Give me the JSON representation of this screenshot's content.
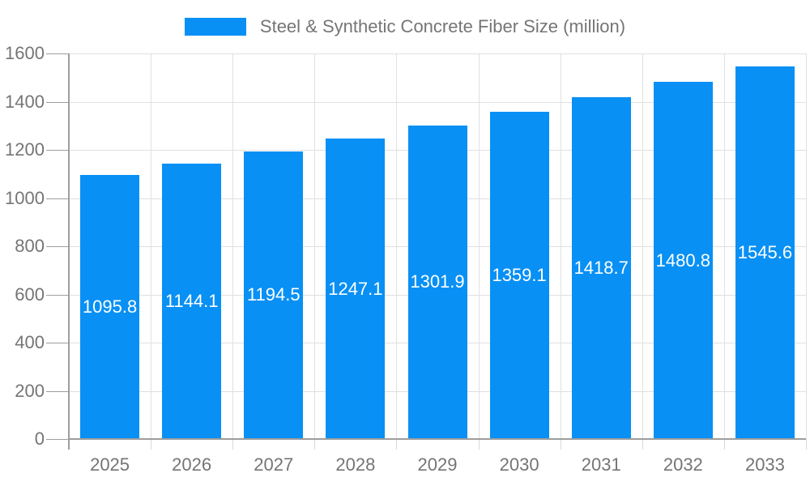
{
  "legend": {
    "label": "Steel & Synthetic Concrete Fiber Size (million)"
  },
  "chart_data": {
    "type": "bar",
    "title": "Steel & Synthetic Concrete Fiber Size (million)",
    "categories": [
      "2025",
      "2026",
      "2027",
      "2028",
      "2029",
      "2030",
      "2031",
      "2032",
      "2033"
    ],
    "series": [
      {
        "name": "Steel & Synthetic Concrete Fiber Size (million)",
        "values": [
          1095.8,
          1144.1,
          1194.5,
          1247.1,
          1301.9,
          1359.1,
          1418.7,
          1480.8,
          1545.6
        ]
      }
    ],
    "value_labels": [
      "1095.8",
      "1144.1",
      "1194.5",
      "1247.1",
      "1301.9",
      "1359.1",
      "1418.7",
      "1480.8",
      "1545.6"
    ],
    "xlabel": "",
    "ylabel": "",
    "ylim": [
      0,
      1600
    ],
    "yticks": [
      0,
      200,
      400,
      600,
      800,
      1000,
      1200,
      1400,
      1600
    ],
    "grid": true,
    "legend_position": "top",
    "value_label_position": "inside-center"
  },
  "colors": {
    "bar": "#0890f5",
    "grid": "#e0e0e0",
    "axis": "#9e9e9e",
    "x_tick": "#d9d9d9",
    "text": "#757575",
    "value_label": "#ffffff",
    "background": "#ffffff"
  }
}
